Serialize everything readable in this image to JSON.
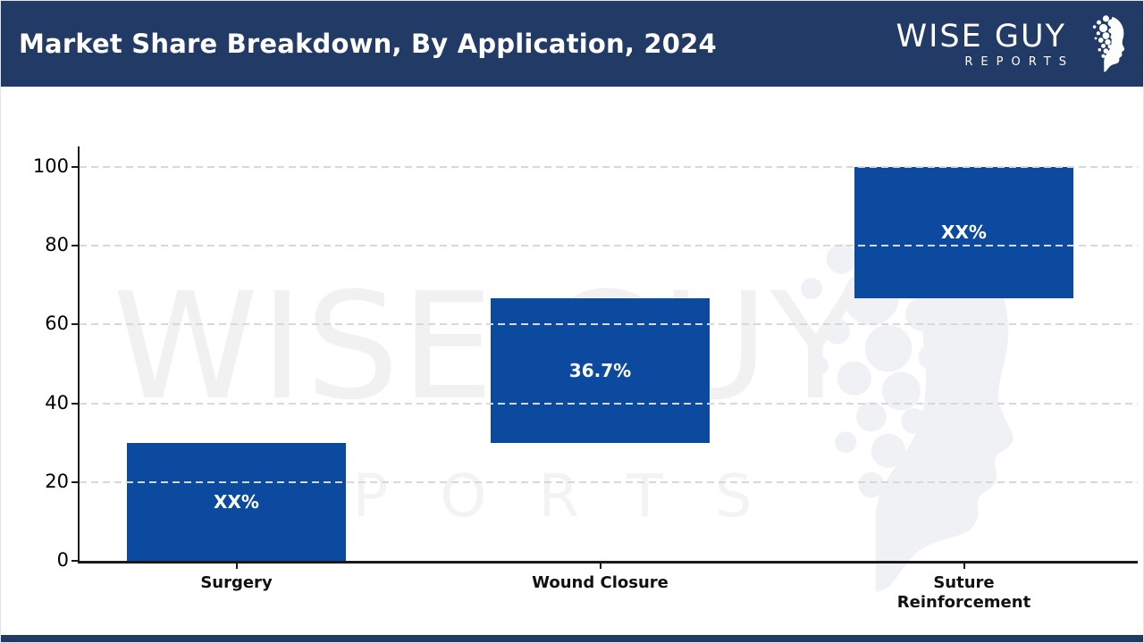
{
  "header": {
    "title": "Market Share Breakdown, By Application, 2024",
    "brand_name": "WISE GUY",
    "brand_sub": "REPORTS",
    "bg_color": "#213a66"
  },
  "watermark": {
    "line1": "WISE GUY",
    "line2": "REPORTS"
  },
  "chart_data": {
    "type": "bar",
    "variant": "floating-segment-bars",
    "title": "Market Share Breakdown, By Application, 2024",
    "categories": [
      "Surgery",
      "Wound Closure",
      "Suture Reinforcement"
    ],
    "series": [
      {
        "name": "Market Share",
        "segments": [
          {
            "category": "Surgery",
            "start": 0,
            "end": 30,
            "label": "XX%"
          },
          {
            "category": "Wound Closure",
            "start": 30,
            "end": 66.7,
            "label": "36.7%"
          },
          {
            "category": "Suture Reinforcement",
            "start": 66.7,
            "end": 100,
            "label": "XX%"
          }
        ]
      }
    ],
    "xlabel": "",
    "ylabel": "",
    "ylim": [
      0,
      100
    ],
    "yticks": [
      0,
      20,
      40,
      60,
      80,
      100
    ],
    "grid": "horizontal-dashed",
    "legend": "none",
    "bar_color": "#0b4a9e",
    "bar_label_color": "#ffffff",
    "axis_color": "#1a1a1a",
    "gridline_color": "#d8d8d8"
  }
}
